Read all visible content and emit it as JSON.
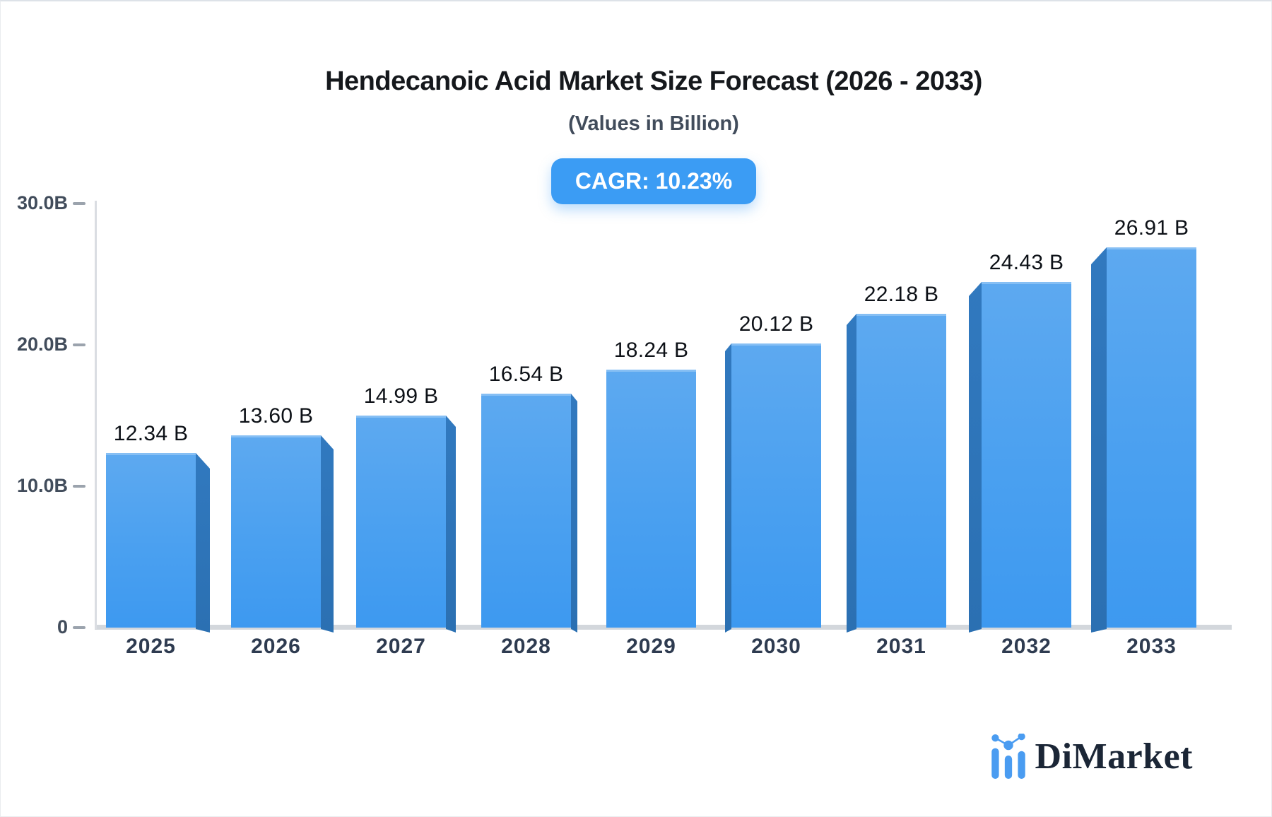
{
  "chart_data": {
    "type": "bar",
    "title": "Hendecanoic Acid Market Size Forecast (2026 - 2033)",
    "subtitle": "(Values in Billion)",
    "badge": "CAGR: 10.23%",
    "categories": [
      "2025",
      "2026",
      "2027",
      "2028",
      "2029",
      "2030",
      "2031",
      "2032",
      "2033"
    ],
    "values": [
      12.34,
      13.6,
      14.99,
      16.54,
      18.24,
      20.12,
      22.18,
      24.43,
      26.91
    ],
    "value_labels": [
      "12.34 B",
      "13.60 B",
      "14.99 B",
      "16.54 B",
      "18.24 B",
      "20.12 B",
      "22.18 B",
      "24.43 B",
      "26.91 B"
    ],
    "xlabel": "",
    "ylabel": "",
    "ylim": [
      0,
      30
    ],
    "yticks": [
      {
        "value": 30,
        "label": "30.0B"
      },
      {
        "value": 20,
        "label": "20.0B"
      },
      {
        "value": 10,
        "label": "10.0B"
      },
      {
        "value": 0,
        "label": "0"
      }
    ],
    "grid": false,
    "legend": "none",
    "bar_style": "3d-perspective"
  },
  "colors": {
    "bar_face_top": "#5da9f0",
    "bar_face_bottom": "#3d99f0",
    "bar_side": "#2d75b9",
    "badge_bg": "#3b9cf4",
    "badge_text": "#ffffff",
    "axis_line": "#d6dade",
    "tick_text": "#414c5b",
    "year_text": "#2e3b50",
    "value_text": "#0d1117",
    "logo_blue": "#4a9cf1",
    "logo_text": "#1b2636"
  },
  "logo": {
    "icon": "bar-line-chart-icon",
    "text": "DiMarket"
  }
}
